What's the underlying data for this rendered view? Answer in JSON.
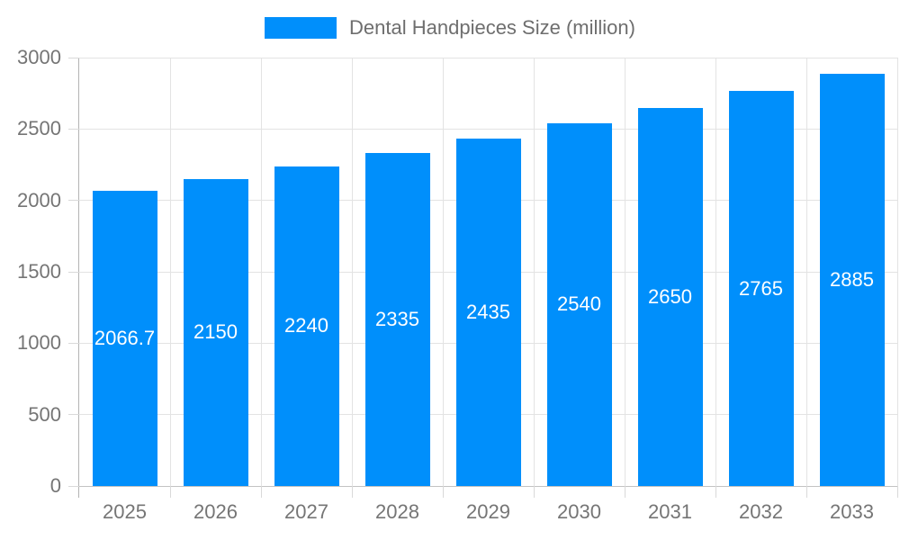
{
  "chart_data": {
    "type": "bar",
    "title": "Dental Handpieces Size (million)",
    "categories": [
      "2025",
      "2026",
      "2027",
      "2028",
      "2029",
      "2030",
      "2031",
      "2032",
      "2033"
    ],
    "series": [
      {
        "name": "Dental Handpieces Size (million)",
        "values": [
          2066.7,
          2150,
          2240,
          2335,
          2435,
          2540,
          2650,
          2765,
          2885
        ]
      }
    ],
    "value_labels": [
      "2066.7",
      "2150",
      "2240",
      "2335",
      "2435",
      "2540",
      "2650",
      "2765",
      "2885"
    ],
    "xlabel": "",
    "ylabel": "",
    "ylim": [
      0,
      3000
    ],
    "ytick_step": 500,
    "ytick_labels": [
      "0",
      "500",
      "1000",
      "1500",
      "2000",
      "2500",
      "3000"
    ],
    "grid": true,
    "legend_position": "top",
    "colors": {
      "bar": "#008FFB",
      "bar_value_text": "#ffffff",
      "axis_text": "#757575",
      "legend_text": "#6e6e6e",
      "gridline": "#e3e3e3",
      "minor_tick": "#d9d9d9",
      "axis_line": "#b3b3b3",
      "background": "#ffffff"
    }
  },
  "legend": {
    "label": "Dental Handpieces Size (million)"
  }
}
